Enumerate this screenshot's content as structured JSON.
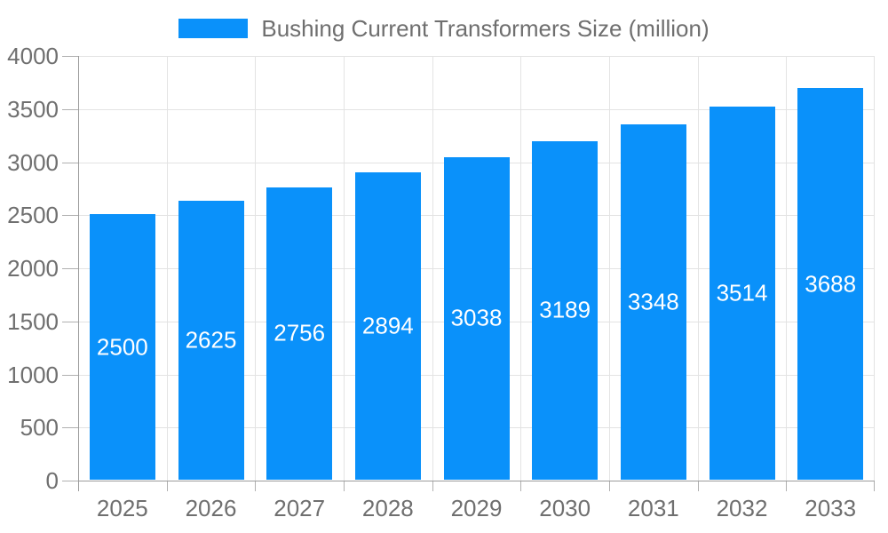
{
  "legend": {
    "label": "Bushing Current Transformers Size (million)"
  },
  "colors": {
    "bar": "#0a91fa",
    "bar_label_text": "#ffffff",
    "axis_text": "#6f6f6f",
    "legend_text": "#6f6f6f",
    "axis_line": "#9c9c9c",
    "tick": "#b0b0b0",
    "grid": "#e3e3e3",
    "background": "#ffffff"
  },
  "chart_data": {
    "type": "bar",
    "title": "",
    "series_name": "Bushing Current Transformers Size (million)",
    "categories": [
      "2025",
      "2026",
      "2027",
      "2028",
      "2029",
      "2030",
      "2031",
      "2032",
      "2033"
    ],
    "values": [
      2500,
      2625,
      2756,
      2894,
      3038,
      3189,
      3348,
      3514,
      3688
    ],
    "bar_labels": [
      2500,
      2625,
      2756,
      2894,
      3038,
      3189,
      3348,
      3514,
      3688
    ],
    "xlabel": "",
    "ylabel": "",
    "ylim": [
      0,
      4000
    ],
    "yticks": [
      0,
      500,
      1000,
      1500,
      2000,
      2500,
      3000,
      3500,
      4000
    ],
    "grid": true,
    "legend_position": "top-center",
    "bar_label_position": "middle-inside",
    "bar_label_color": "#ffffff"
  }
}
